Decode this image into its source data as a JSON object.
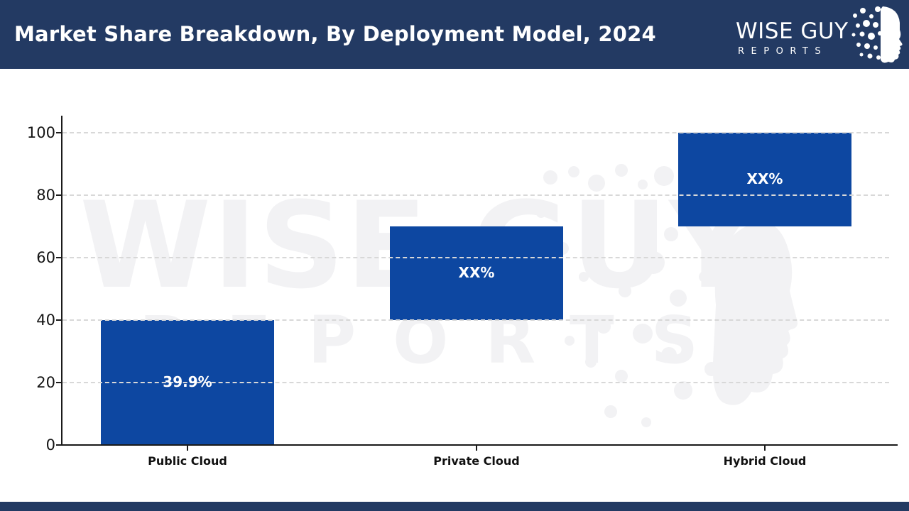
{
  "header": {
    "title": "Market Share Breakdown, By Deployment Model, 2024"
  },
  "logo": {
    "name": "WISE GUY",
    "tagline": "REPORTS"
  },
  "watermark": {
    "name": "WISE GUY",
    "tagline": "REPORTS"
  },
  "chart_data": {
    "type": "bar",
    "subtype": "floating-range-bars (waterfall style market share)",
    "title": "Market Share Breakdown, By Deployment Model, 2024",
    "categories": [
      "Public Cloud",
      "Private Cloud",
      "Hybrid Cloud"
    ],
    "bars": [
      {
        "category": "Public Cloud",
        "from": 0,
        "to": 39.9,
        "label": "39.9%"
      },
      {
        "category": "Private Cloud",
        "from": 40,
        "to": 70,
        "label": "XX%"
      },
      {
        "category": "Hybrid Cloud",
        "from": 70,
        "to": 100,
        "label": "XX%"
      }
    ],
    "xlabel": "",
    "ylabel": "",
    "ylim": [
      0,
      100
    ],
    "yticks": [
      0,
      20,
      40,
      60,
      80,
      100
    ],
    "grid": "horizontal dashed gridlines drawn over bars",
    "legend": "none",
    "bar_color": "#0d47a1",
    "label_color": "#ffffff"
  },
  "colors": {
    "header_bg": "#233a63",
    "footer_bg": "#233a63",
    "bar_blue": "#0d47a1",
    "gridline": "#d8d8d8",
    "axis": "#1a1a1a",
    "watermark": "#f2f2f4",
    "title_text": "#ffffff"
  }
}
